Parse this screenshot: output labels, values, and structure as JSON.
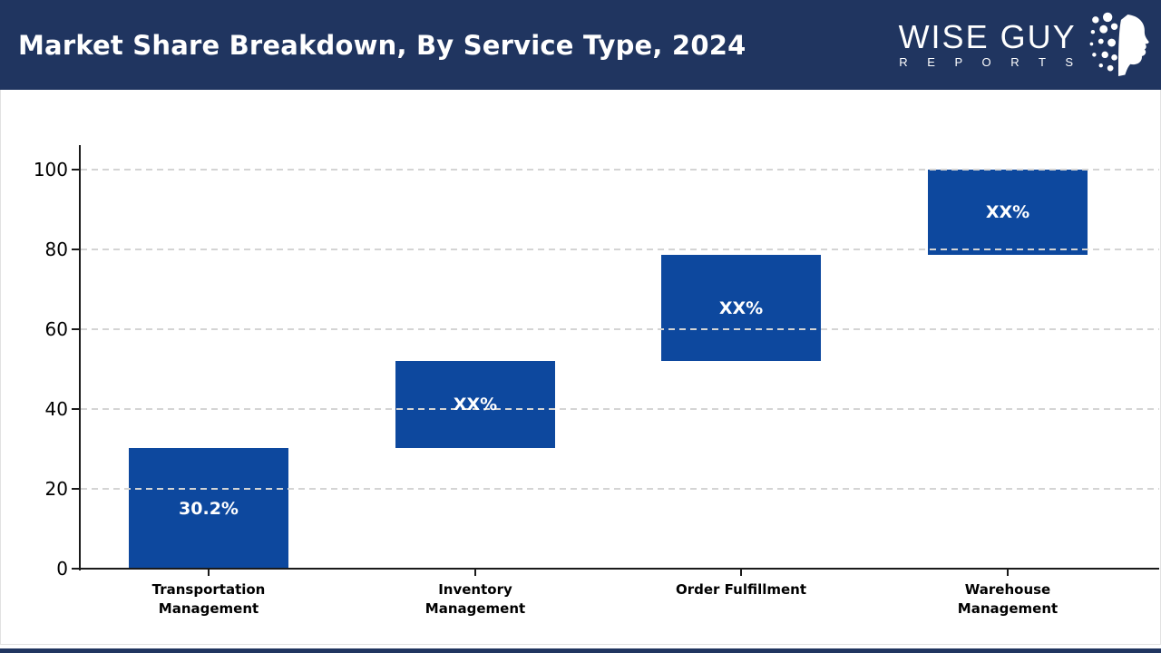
{
  "header": {
    "title": "Market Share Breakdown, By Service Type, 2024",
    "logo": {
      "name": "WISE GUY",
      "sub": "R E P O R T S"
    }
  },
  "watermark": {
    "big": "WISE GUY",
    "sub": "R E P O R T S"
  },
  "colors": {
    "header_bg": "#203560",
    "footer_bg": "#203560",
    "bar": "#0d489e",
    "bar_label": "#ffffff",
    "grid": "#d4d4d4",
    "axis": "#1a1a1a"
  },
  "chart_data": {
    "type": "bar",
    "variant": "waterfall",
    "title": "Market Share Breakdown, By Service Type, 2024",
    "xlabel": "",
    "ylabel": "",
    "ylim": [
      0,
      100
    ],
    "yticks": [
      0,
      20,
      40,
      60,
      80,
      100
    ],
    "grid": {
      "axis": "y",
      "style": "dashed"
    },
    "legend": "none",
    "categories": [
      "Transportation Management",
      "Inventory Management",
      "Order Fulfillment",
      "Warehouse Management"
    ],
    "category_lines": [
      [
        "Transportation",
        "Management"
      ],
      [
        "Inventory",
        "Management"
      ],
      [
        "Order Fulfillment"
      ],
      [
        "Warehouse",
        "Management"
      ]
    ],
    "segments": [
      {
        "category": "Transportation Management",
        "start": 0,
        "end": 30.2,
        "label": "30.2%"
      },
      {
        "category": "Inventory Management",
        "start": 30.2,
        "end": 52,
        "label": "XX%"
      },
      {
        "category": "Order Fulfillment",
        "start": 52,
        "end": 78.6,
        "label": "XX%"
      },
      {
        "category": "Warehouse Management",
        "start": 78.6,
        "end": 100,
        "label": "XX%"
      }
    ]
  }
}
